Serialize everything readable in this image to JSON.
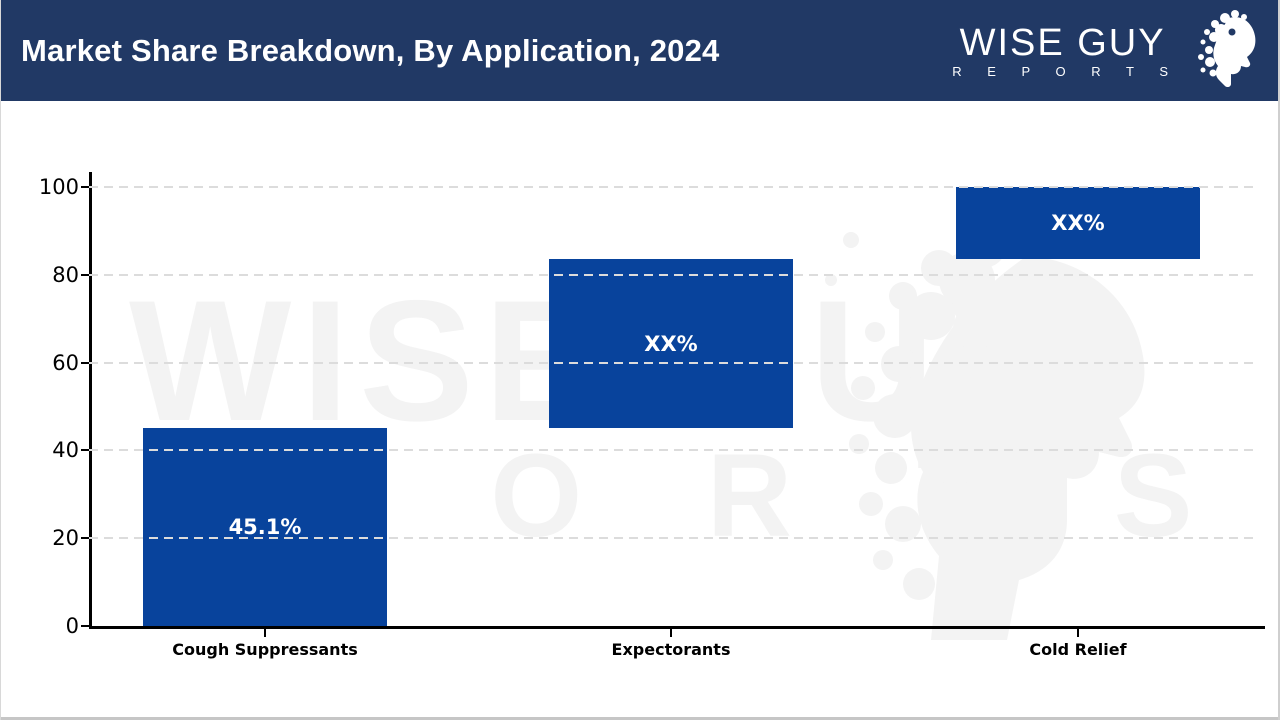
{
  "header": {
    "title": "Market Share Breakdown, By Application, 2024",
    "background": "#213965",
    "logo": {
      "line1": "WISE GUY",
      "line2": "R E P O R T S"
    }
  },
  "watermark": {
    "line1": "WISE GUY",
    "line2": "P O R T S"
  },
  "chart_data": {
    "type": "bar",
    "subtype": "floating-waterfall",
    "title": "Market Share Breakdown, By Application, 2024",
    "categories": [
      "Cough Suppressants",
      "Expectorants",
      "Cold Relief"
    ],
    "segments": [
      {
        "category": "Cough Suppressants",
        "start": 0,
        "end": 45.1,
        "label": "45.1%"
      },
      {
        "category": "Expectorants",
        "start": 45.1,
        "end": 83.5,
        "label": "XX%"
      },
      {
        "category": "Cold Relief",
        "start": 83.5,
        "end": 100,
        "label": "XX%"
      }
    ],
    "xlabel": "",
    "ylabel": "",
    "yticks": [
      0,
      20,
      40,
      60,
      80,
      100
    ],
    "ylim": [
      0,
      103.5
    ],
    "grid": {
      "horizontal": true,
      "style": "dashed",
      "color": "#dcdcdc"
    },
    "legend": "none",
    "colors": {
      "bar": "#08439c",
      "value_label": "#ffffff",
      "axis": "#000000"
    }
  }
}
